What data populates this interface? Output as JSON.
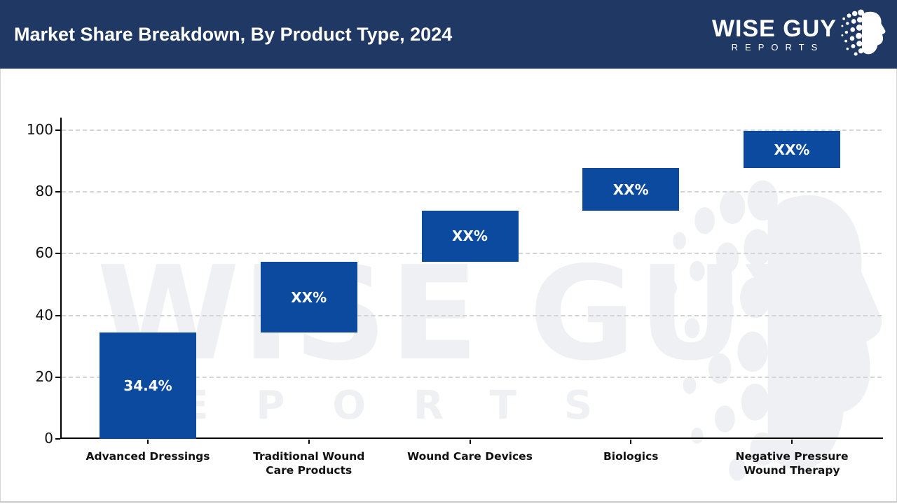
{
  "header": {
    "title": "Market Share Breakdown, By Product Type, 2024",
    "bg_color": "#1f3864",
    "logo": {
      "line1": "WISE GUY",
      "line2": "REPORTS"
    }
  },
  "watermark": {
    "line1": "WISE GUY",
    "line2": "REPORTS"
  },
  "chart_data": {
    "type": "bar",
    "subtype": "waterfall",
    "title": "Market Share Breakdown, By Product Type, 2024",
    "categories": [
      "Advanced Dressings",
      "Traditional Wound\nCare Products",
      "Wound Care Devices",
      "Biologics",
      "Negative Pressure\nWound Therapy"
    ],
    "segments": [
      {
        "start": 0,
        "end": 34.4,
        "label": "34.4%"
      },
      {
        "start": 34.4,
        "end": 57.4,
        "label": "XX%"
      },
      {
        "start": 57.4,
        "end": 73.9,
        "label": "XX%"
      },
      {
        "start": 73.9,
        "end": 87.7,
        "label": "XX%"
      },
      {
        "start": 87.7,
        "end": 99.8,
        "label": "XX%"
      }
    ],
    "xlabel": "",
    "ylabel": "",
    "yticks": [
      0,
      20,
      40,
      60,
      80,
      100
    ],
    "ylim": [
      0,
      105
    ],
    "grid": "horizontal-dashed",
    "legend": "none",
    "bar_color": "#0b4a9e",
    "bar_label_color": "#ffffff",
    "grid_color": "#d4d4d4",
    "axis_color": "#000000"
  }
}
